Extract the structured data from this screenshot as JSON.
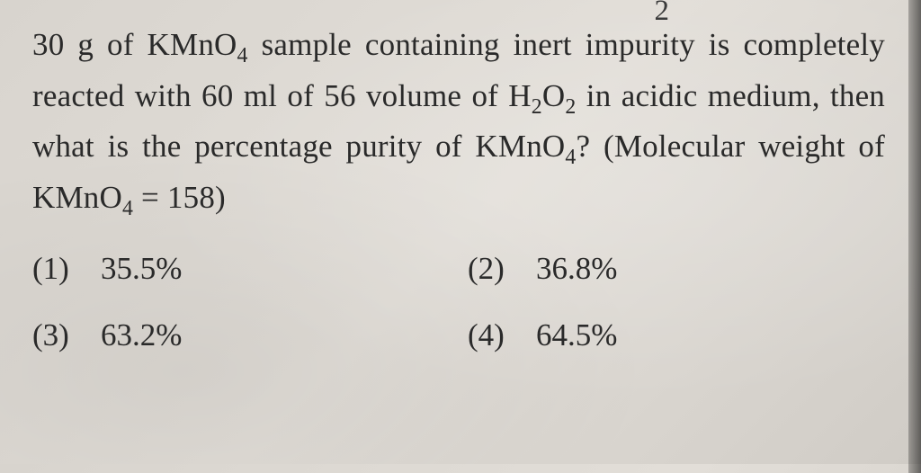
{
  "fragment_top": "2",
  "question": {
    "line1_pre": "30 g of KMnO",
    "sub1": "4",
    "line1_post": " sample containing inert impurity is completely reacted with 60 ml of 56 volume of H",
    "sub2": "2",
    "mid1": "O",
    "sub3": "2",
    "mid2": " in acidic medium, then what is the percentage purity of KMnO",
    "sub4": "4",
    "tail": "? (Molecular weight of KMnO",
    "sub5": "4",
    "end": " = 158)"
  },
  "options": [
    {
      "num": "(1)",
      "text": "35.5%"
    },
    {
      "num": "(2)",
      "text": "36.8%"
    },
    {
      "num": "(3)",
      "text": "63.2%"
    },
    {
      "num": "(4)",
      "text": "64.5%"
    }
  ]
}
